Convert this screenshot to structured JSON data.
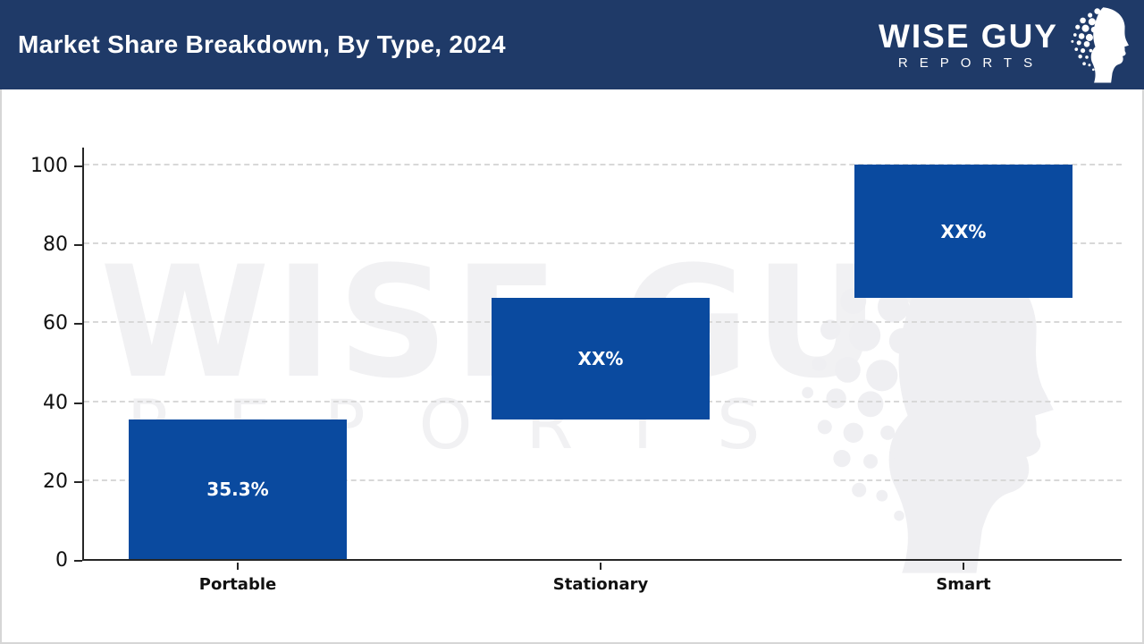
{
  "header": {
    "title": "Market Share Breakdown, By Type, 2024",
    "brand": {
      "line1": "WISE GUY",
      "line2": "REPORTS"
    }
  },
  "watermark": {
    "line1": "WISE GUY",
    "line2": "REPORTS"
  },
  "chart_data": {
    "type": "bar",
    "subtype": "waterfall",
    "title": "Market Share Breakdown, By Type, 2024",
    "categories": [
      "Portable",
      "Stationary",
      "Smart"
    ],
    "segments": [
      {
        "category": "Portable",
        "start": 0,
        "end": 35.3,
        "label": "35.3%"
      },
      {
        "category": "Stationary",
        "start": 35.3,
        "end": 66.2,
        "label": "XX%"
      },
      {
        "category": "Smart",
        "start": 66.2,
        "end": 100,
        "label": "XX%"
      }
    ],
    "y_ticks": [
      0,
      20,
      40,
      60,
      80,
      100
    ],
    "ylim": [
      0,
      104.5
    ],
    "xlabel": "",
    "ylabel": "",
    "grid": "horizontal-dashed",
    "legend": "none",
    "bar_color": "#0a4a9f",
    "bar_label_color": "#ffffff"
  },
  "colors": {
    "header_bg": "#1f3a68",
    "bar": "#0a4a9f",
    "grid": "#d8d8d8",
    "axis": "#262626",
    "watermark": "#f1f1f3",
    "page_border": "#d6d6d6"
  }
}
